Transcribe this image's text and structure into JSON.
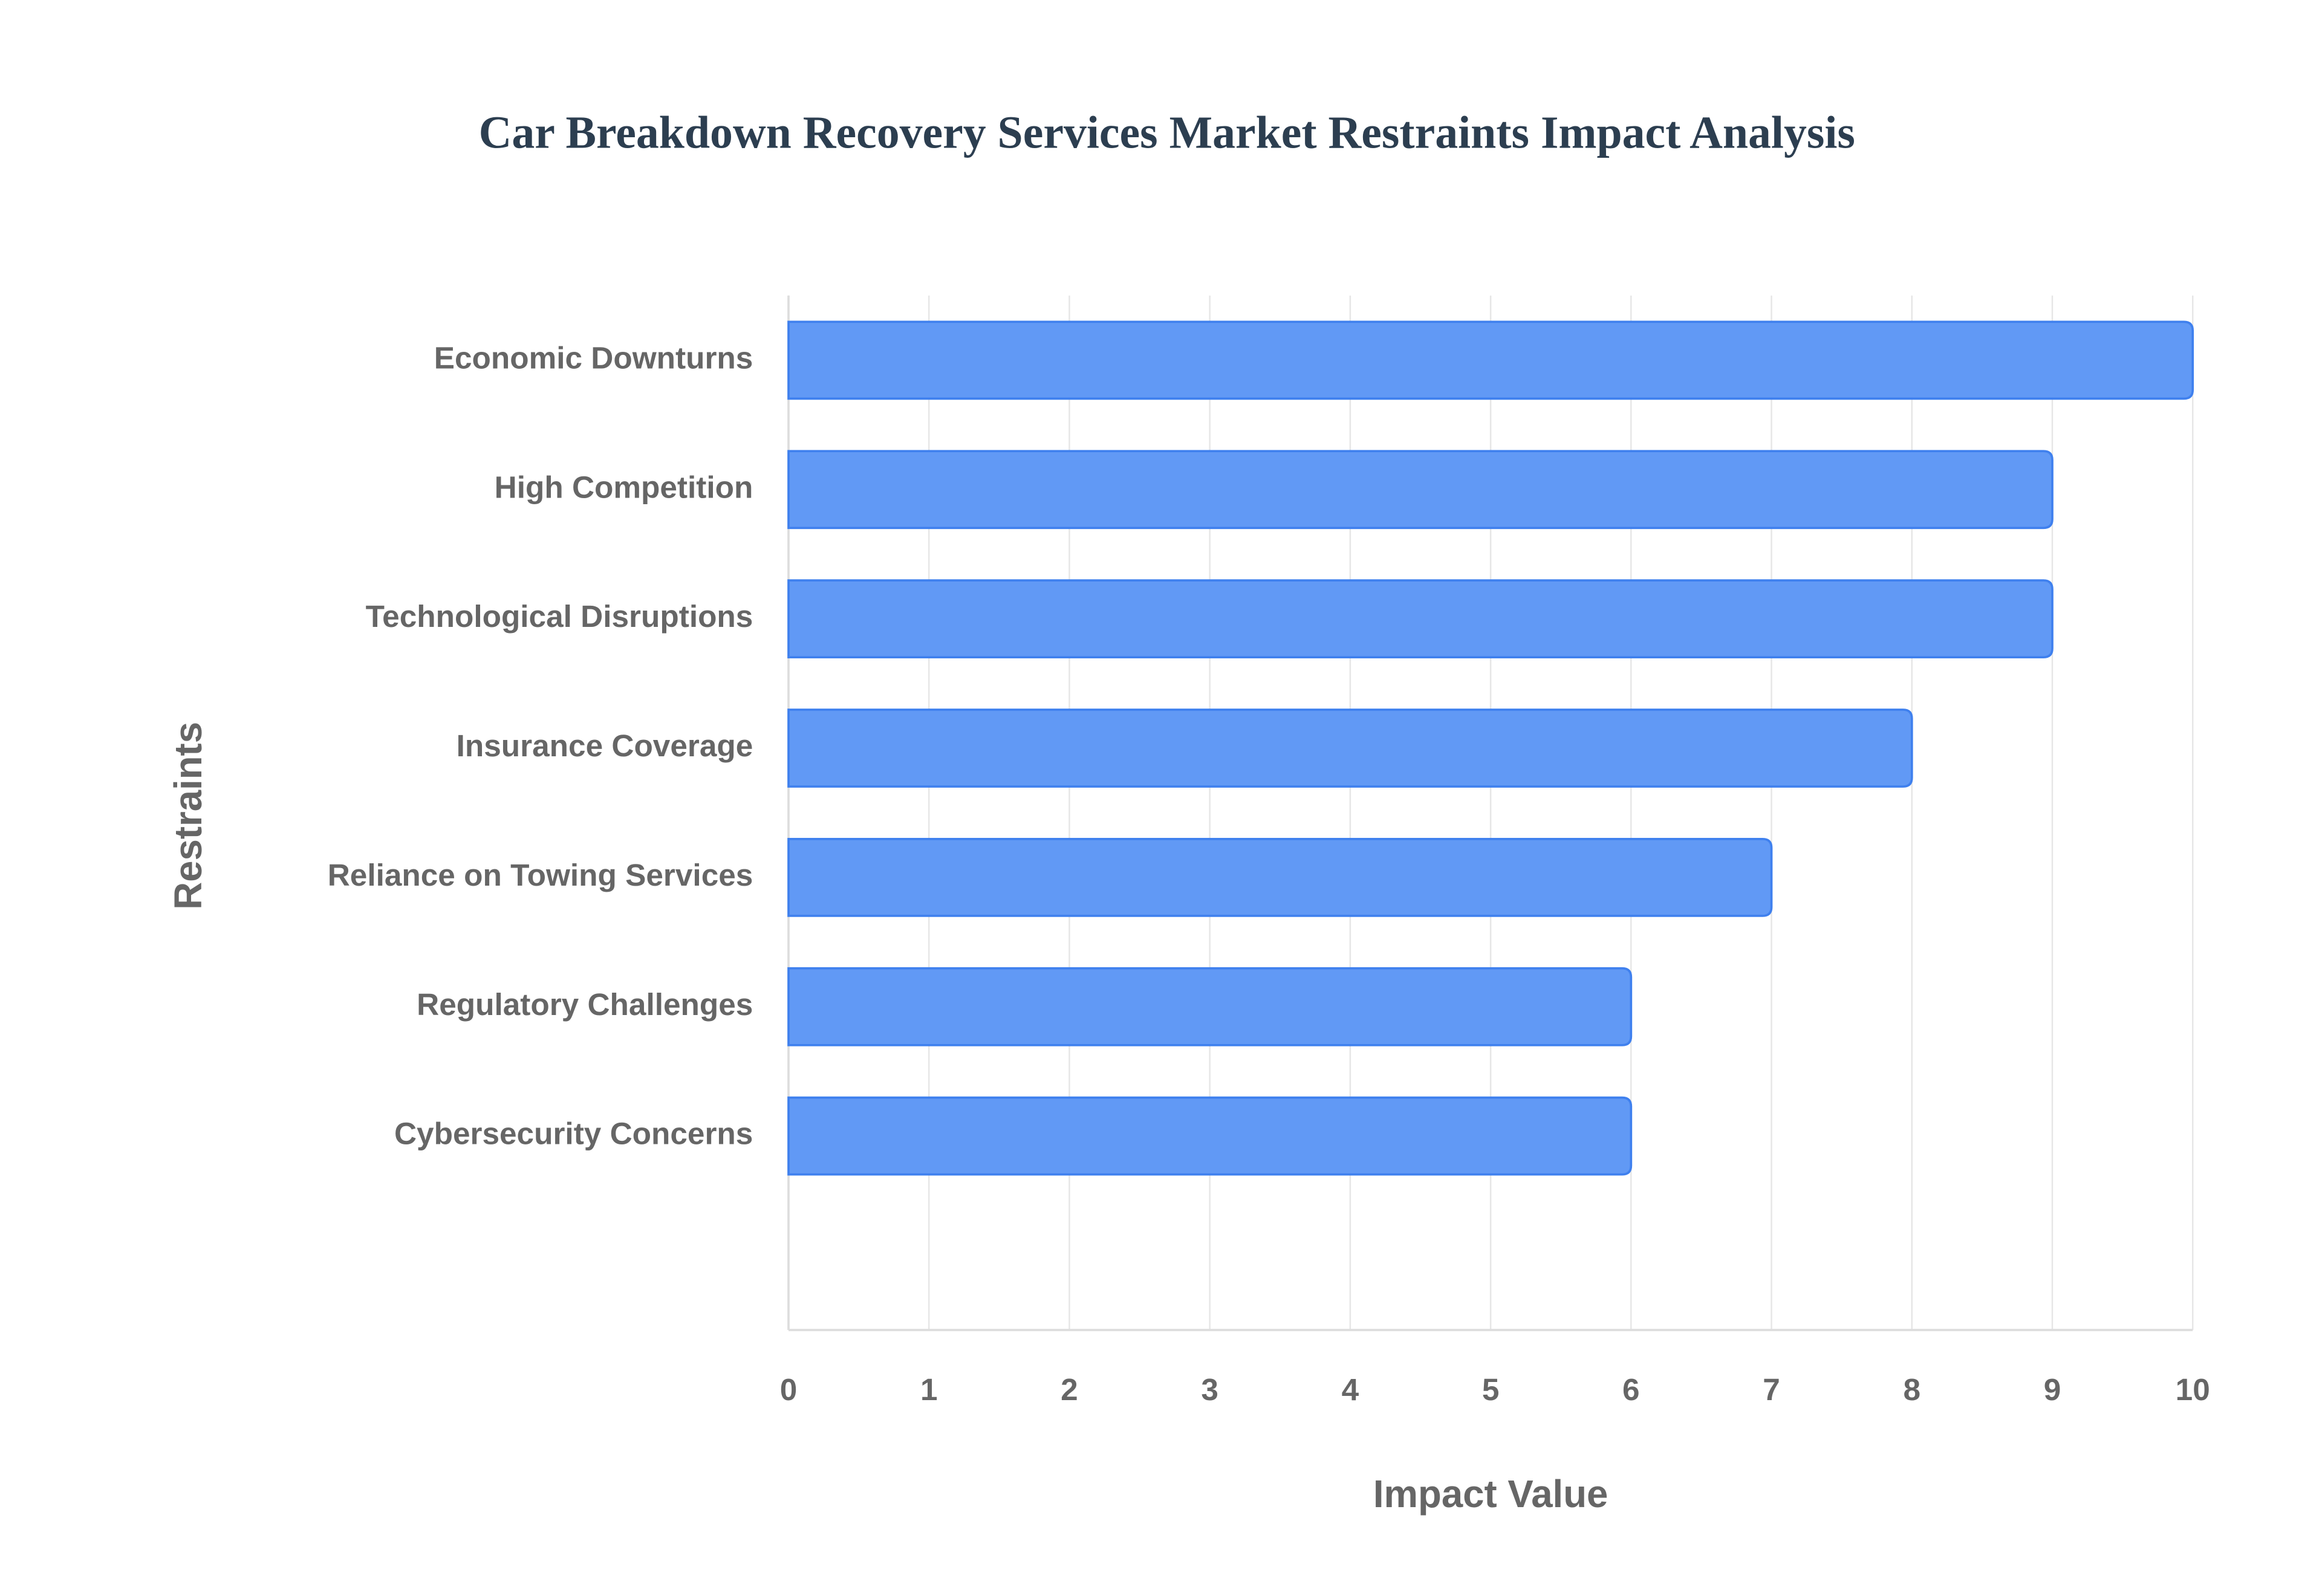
{
  "chart_data": {
    "type": "bar",
    "orientation": "horizontal",
    "title": "Car Breakdown Recovery Services Market Restraints Impact Analysis",
    "x_label": "Impact Value",
    "y_label": "Restraints",
    "categories": [
      "Economic Downturns",
      "High Competition",
      "Technological Disruptions",
      "Insurance Coverage",
      "Reliance on Towing Services",
      "Regulatory Challenges",
      "Cybersecurity Concerns"
    ],
    "values": [
      10,
      9,
      9,
      8,
      7,
      6,
      6
    ],
    "color": "#6199f5",
    "xlim": [
      0,
      10
    ],
    "xticks": [
      0,
      1,
      2,
      3,
      4,
      5,
      6,
      7,
      8,
      9,
      10
    ],
    "grid": true
  }
}
